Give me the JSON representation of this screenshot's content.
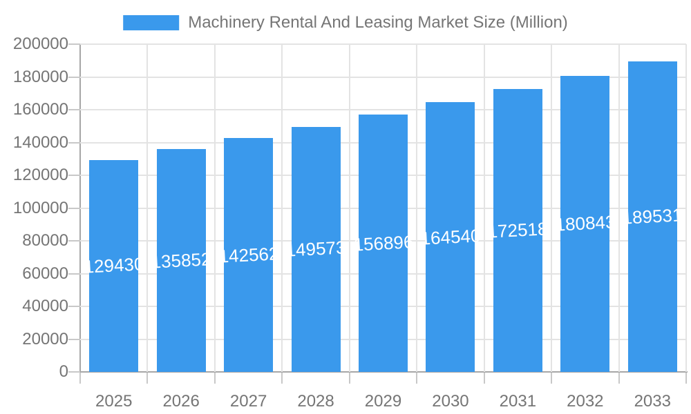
{
  "chart_data": {
    "type": "bar",
    "title": "Machinery Rental And Leasing Market Size (Million)",
    "categories": [
      "2025",
      "2026",
      "2027",
      "2028",
      "2029",
      "2030",
      "2031",
      "2032",
      "2033"
    ],
    "values": [
      129430,
      135852,
      142562,
      149573,
      156896,
      164540,
      172518,
      180843,
      189531
    ],
    "xlabel": "",
    "ylabel": "",
    "ylim": [
      0,
      200000
    ],
    "y_ticks": [
      "0",
      "20000",
      "40000",
      "60000",
      "80000",
      "100000",
      "120000",
      "140000",
      "160000",
      "180000",
      "200000"
    ],
    "y_tick_values": [
      0,
      20000,
      40000,
      60000,
      80000,
      100000,
      120000,
      140000,
      160000,
      180000,
      200000
    ],
    "grid": "both",
    "legend_position": "top-center",
    "value_labels": "inside-center"
  },
  "colors": {
    "bar": "#3A99EC",
    "value_label": "#FFFFFF",
    "axis_text": "#757575",
    "axis_line": "#A6A6A6",
    "gridline": "#E3E3E3"
  }
}
